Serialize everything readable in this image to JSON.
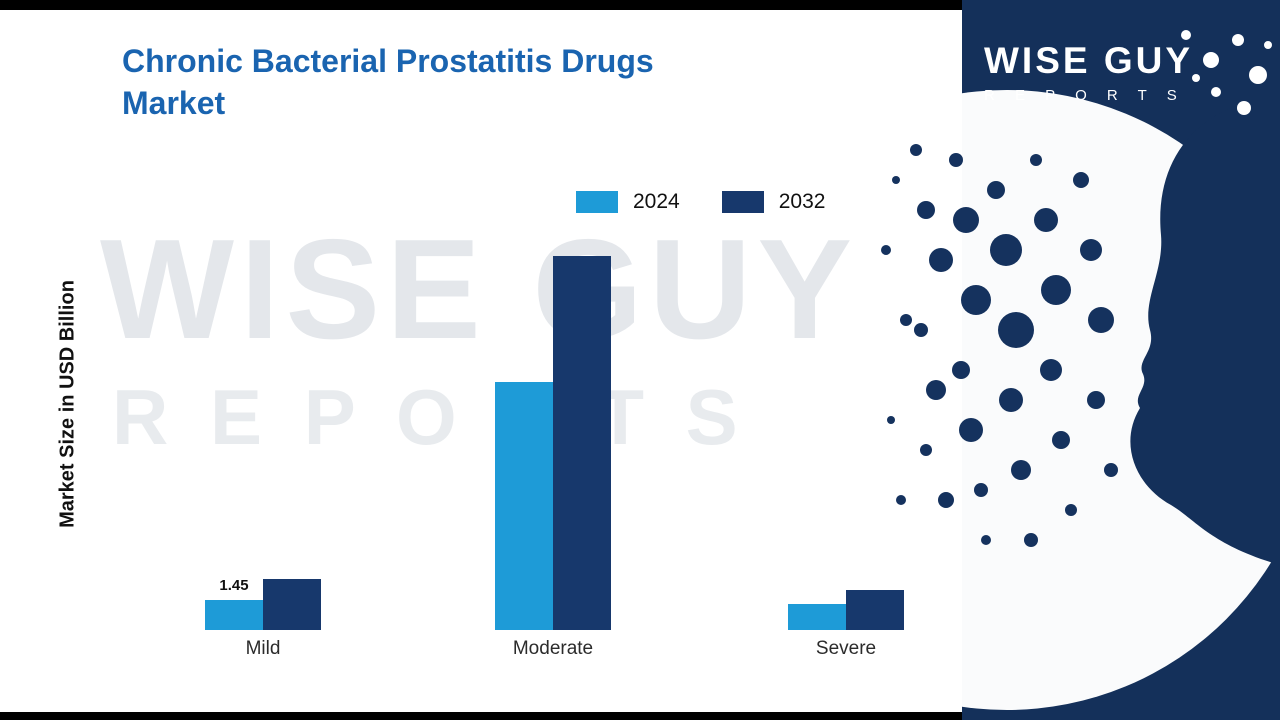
{
  "header": {
    "title_lines": [
      "Chronic Bacterial Prostatitis Drugs",
      "Market"
    ]
  },
  "logo": {
    "name": "WISE GUY",
    "sub": "R E P O R T S"
  },
  "watermark": {
    "line1": "WISE GUY",
    "line2": "R E P O R T S"
  },
  "chart_data": {
    "type": "bar",
    "title": "Chronic Bacterial Prostatitis Drugs Market",
    "xlabel": "",
    "ylabel": "Market Size in USD Billion",
    "categories": [
      "Mild",
      "Moderate",
      "Severe"
    ],
    "series": [
      {
        "name": "2024",
        "color": "#1e9bd7",
        "values": [
          1.45,
          12.1,
          1.25
        ]
      },
      {
        "name": "2032",
        "color": "#17386c",
        "values": [
          2.5,
          18.25,
          1.95
        ]
      }
    ],
    "annotations": [
      {
        "series": "2024",
        "category": "Mild",
        "text": "1.45"
      }
    ],
    "ylim": [
      0,
      20
    ],
    "grid": false,
    "legend_position": "top-center"
  },
  "colors": {
    "title_blue": "#1a64b0",
    "bar_2024": "#1e9bd7",
    "bar_2032": "#17386c",
    "panel_navy": "#14305a",
    "watermark_gray": "#e4e7eb"
  }
}
